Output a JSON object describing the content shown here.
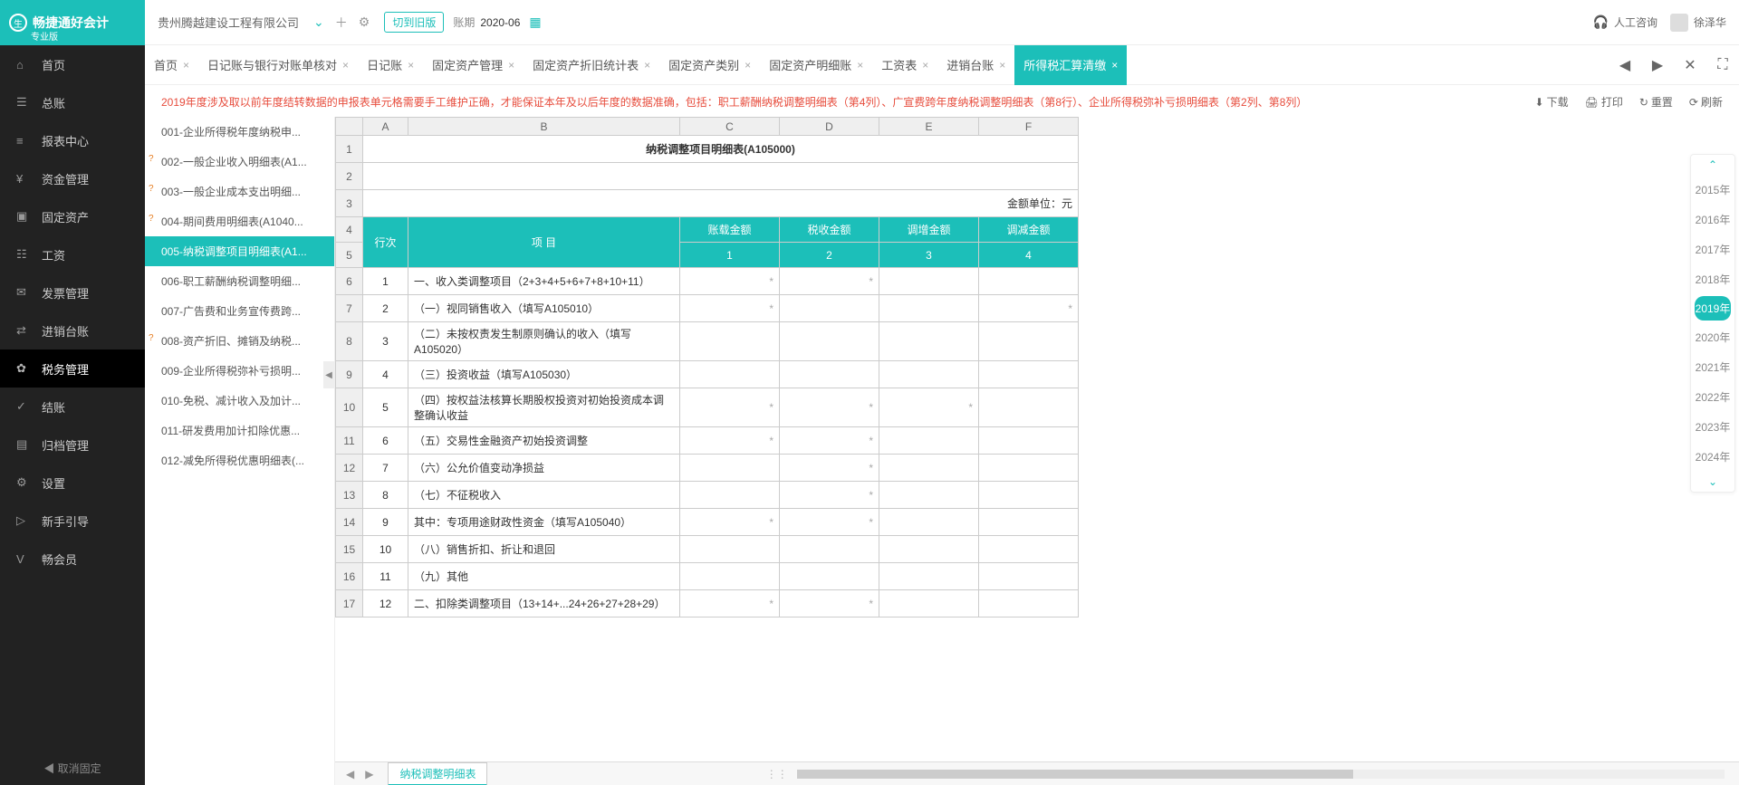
{
  "brand": {
    "name": "畅捷通好会计",
    "edition": "专业版"
  },
  "header": {
    "company": "贵州腾越建设工程有限公司",
    "old_version": "切到旧版",
    "period_label": "账期",
    "period_value": "2020-06",
    "consult": "人工咨询",
    "user": "徐泽华"
  },
  "nav": [
    {
      "icon": "⌂",
      "label": "首页"
    },
    {
      "icon": "☰",
      "label": "总账"
    },
    {
      "icon": "≡",
      "label": "报表中心"
    },
    {
      "icon": "¥",
      "label": "资金管理"
    },
    {
      "icon": "▣",
      "label": "固定资产"
    },
    {
      "icon": "☷",
      "label": "工资"
    },
    {
      "icon": "✉",
      "label": "发票管理"
    },
    {
      "icon": "⇄",
      "label": "进销台账"
    },
    {
      "icon": "✿",
      "label": "税务管理",
      "active": true
    },
    {
      "icon": "✓",
      "label": "结账"
    },
    {
      "icon": "▤",
      "label": "归档管理"
    },
    {
      "icon": "⚙",
      "label": "设置"
    },
    {
      "icon": "▷",
      "label": "新手引导"
    },
    {
      "icon": "V",
      "label": "畅会员"
    }
  ],
  "nav_footer": "◀ 取消固定",
  "tabs": {
    "items": [
      {
        "label": "首页",
        "closable": true
      },
      {
        "label": "日记账与银行对账单核对",
        "closable": true
      },
      {
        "label": "日记账",
        "closable": true
      },
      {
        "label": "固定资产管理",
        "closable": true
      },
      {
        "label": "固定资产折旧统计表",
        "closable": true
      },
      {
        "label": "固定资产类别",
        "closable": true
      },
      {
        "label": "固定资产明细账",
        "closable": true
      },
      {
        "label": "工资表",
        "closable": true
      },
      {
        "label": "进销台账",
        "closable": true
      },
      {
        "label": "所得税汇算清缴",
        "closable": true,
        "active": true
      }
    ]
  },
  "notice": "2019年度涉及取以前年度结转数据的申报表单元格需要手工维护正确，才能保证本年及以后年度的数据准确，包括：职工薪酬纳税调整明细表（第4列）、广宣费跨年度纳税调整明细表（第8行）、企业所得税弥补亏损明细表（第2列、第8列）",
  "toolbar": {
    "download": "下载",
    "print": "打印",
    "reset": "重置",
    "refresh": "刷新"
  },
  "reports": [
    {
      "label": "001-企业所得税年度纳税申..."
    },
    {
      "label": "002-一般企业收入明细表(A1...",
      "q": true
    },
    {
      "label": "003-一般企业成本支出明细...",
      "q": true
    },
    {
      "label": "004-期间费用明细表(A1040...",
      "q": true
    },
    {
      "label": "005-纳税调整项目明细表(A1...",
      "active": true
    },
    {
      "label": "006-职工薪酬纳税调整明细..."
    },
    {
      "label": "007-广告费和业务宣传费跨..."
    },
    {
      "label": "008-资产折旧、摊销及纳税...",
      "q": true
    },
    {
      "label": "009-企业所得税弥补亏损明..."
    },
    {
      "label": "010-免税、减计收入及加计..."
    },
    {
      "label": "011-研发费用加计扣除优惠..."
    },
    {
      "label": "012-减免所得税优惠明细表(..."
    }
  ],
  "sheet": {
    "title": "纳税调整项目明细表(A105000)",
    "unit": "金额单位：元",
    "header1": {
      "rowcol": "行次",
      "item": "项 目",
      "c": "账载金额",
      "d": "税收金额",
      "e": "调增金额",
      "f": "调减金额"
    },
    "header2": {
      "c": "1",
      "d": "2",
      "e": "3",
      "f": "4"
    },
    "cols": [
      "A",
      "B",
      "C",
      "D",
      "E",
      "F"
    ],
    "rows": [
      {
        "n": "1",
        "item": "一、收入类调整项目（2+3+4+5+6+7+8+10+11）",
        "stars": [
          "*",
          "*"
        ]
      },
      {
        "n": "2",
        "item": "（一）视同销售收入（填写A105010）",
        "stars": [
          "*",
          "",
          "",
          "*"
        ]
      },
      {
        "n": "3",
        "item": "（二）未按权责发生制原则确认的收入（填写A105020）"
      },
      {
        "n": "4",
        "item": "（三）投资收益（填写A105030）"
      },
      {
        "n": "5",
        "item": "（四）按权益法核算长期股权投资对初始投资成本调整确认收益",
        "stars": [
          "*",
          "*",
          "*"
        ]
      },
      {
        "n": "6",
        "item": "（五）交易性金融资产初始投资调整",
        "stars": [
          "*",
          "*"
        ]
      },
      {
        "n": "7",
        "item": "（六）公允价值变动净损益",
        "stars": [
          "",
          "*"
        ]
      },
      {
        "n": "8",
        "item": "（七）不征税收入",
        "stars": [
          "",
          "*"
        ]
      },
      {
        "n": "9",
        "item": "    其中：专项用途财政性资金（填写A105040）",
        "stars": [
          "*",
          "*"
        ]
      },
      {
        "n": "10",
        "item": "（八）销售折扣、折让和退回"
      },
      {
        "n": "11",
        "item": "（九）其他"
      },
      {
        "n": "12",
        "item": "二、扣除类调整项目（13+14+...24+26+27+28+29）",
        "stars": [
          "*",
          "*"
        ]
      }
    ],
    "tab_name": "纳税调整明细表"
  },
  "years": [
    "2015年",
    "2016年",
    "2017年",
    "2018年",
    "2019年",
    "2020年",
    "2021年",
    "2022年",
    "2023年",
    "2024年"
  ],
  "years_active": 4,
  "colors": {
    "teal": "#1cbfb9",
    "red": "#e74c3c"
  }
}
